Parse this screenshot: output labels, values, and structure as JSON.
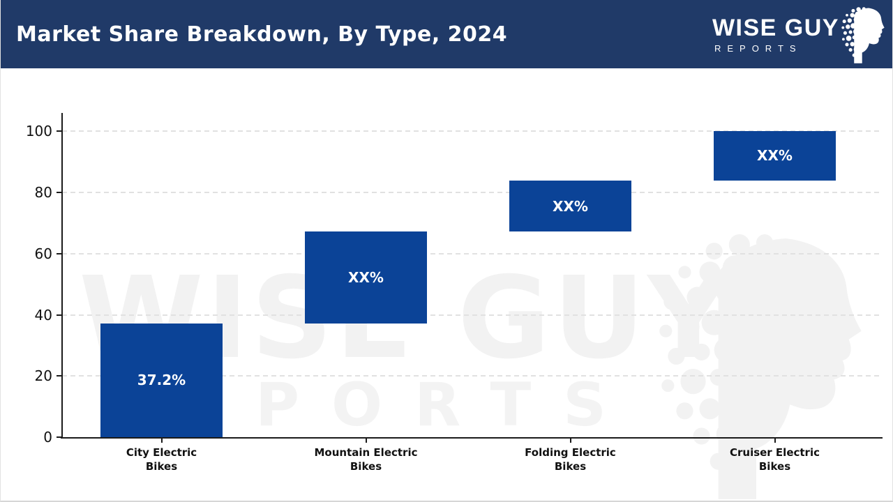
{
  "header": {
    "title": "Market Share Breakdown, By Type, 2024",
    "logo": {
      "name": "WISE GUY",
      "sub": "REPORTS"
    }
  },
  "watermark": {
    "line1": "WISE GUY",
    "line2": "REPORTS"
  },
  "colors": {
    "header_bg": "#203A68",
    "bar": "#0B4397",
    "bar_label": "#ffffff",
    "gridline": "#e1e1e1",
    "axis": "#1a1a1a",
    "watermark": "#f2f2f2"
  },
  "chart_data": {
    "type": "bar",
    "subtype": "waterfall",
    "title": "Market Share Breakdown, By Type, 2024",
    "xlabel": "",
    "ylabel": "",
    "categories": [
      "City Electric Bikes",
      "Mountain Electric Bikes",
      "Folding Electric Bikes",
      "Cruiser Electric Bikes"
    ],
    "bars": [
      {
        "category": "City Electric Bikes",
        "label": "37.2%",
        "start": 0,
        "end": 37.2
      },
      {
        "category": "Mountain Electric Bikes",
        "label": "XX%",
        "start": 37.2,
        "end": 67.2
      },
      {
        "category": "Folding Electric Bikes",
        "label": "XX%",
        "start": 67.2,
        "end": 83.8
      },
      {
        "category": "Cruiser Electric Bikes",
        "label": "XX%",
        "start": 84,
        "end": 100
      }
    ],
    "yticks": [
      0,
      20,
      40,
      60,
      80,
      100
    ],
    "ylim": [
      0,
      106
    ],
    "grid": "horizontal-dashed",
    "legend": "none"
  }
}
